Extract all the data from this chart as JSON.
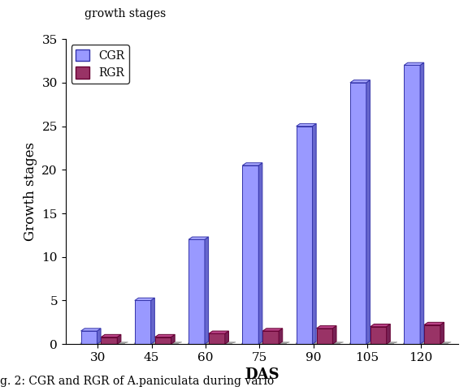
{
  "categories": [
    "30",
    "45",
    "60",
    "75",
    "90",
    "105",
    "120"
  ],
  "CGR": [
    1.5,
    5.0,
    12.0,
    20.5,
    25.0,
    30.0,
    32.0
  ],
  "RGR": [
    0.8,
    0.8,
    1.2,
    1.5,
    1.8,
    2.0,
    2.2
  ],
  "cgr_color": "#9999ff",
  "cgr_edge_color": "#3333aa",
  "cgr_side_color": "#6666cc",
  "cgr_top_color": "#aaaaff",
  "rgr_color": "#993366",
  "rgr_edge_color": "#660033",
  "rgr_side_color": "#772255",
  "rgr_top_color": "#bb4488",
  "ylabel": "Growth stages",
  "xlabel": "DAS",
  "ylim": [
    0,
    35
  ],
  "yticks": [
    0,
    5,
    10,
    15,
    20,
    25,
    30,
    35
  ],
  "legend_labels": [
    "CGR",
    "RGR"
  ],
  "bar_width": 0.3,
  "depth": 0.12,
  "floor_color": "#aaaaaa",
  "floor_edge_color": "#888888",
  "title_top": "growth stages",
  "caption": "g. 2: CGR and RGR of A.paniculata during vario",
  "fig_width": 5.76,
  "fig_height": 4.82,
  "dpi": 100
}
